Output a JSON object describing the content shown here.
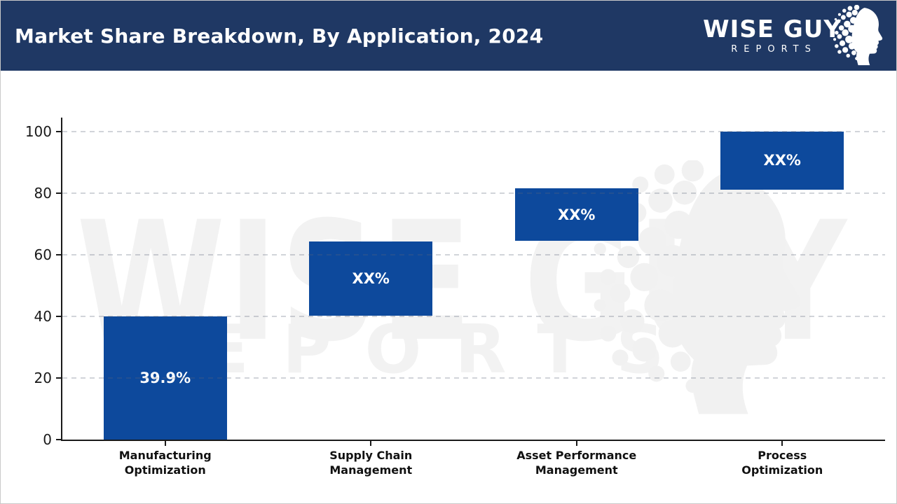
{
  "header": {
    "title": "Market Share Breakdown, By Application, 2024",
    "logo": {
      "line1": "WISE GUY",
      "line2": "REPORTS"
    }
  },
  "watermark": {
    "line1": "WISE GUY",
    "line2": "REPORTS"
  },
  "colors": {
    "header_bg": "#1f3864",
    "bar_fill": "#0d499c",
    "bar_label": "#ffffff",
    "axis": "#1a1a1a",
    "tick_text": "#1a1a1a",
    "category_text": "#111111",
    "grid_rgba": "rgba(90,100,120,0.28)",
    "watermark_text": "#f2f2f2",
    "page_bg": "#ffffff"
  },
  "chart_data": {
    "type": "bar",
    "subtype": "waterfall",
    "title": "Market Share Breakdown, By Application, 2024",
    "categories": [
      "Manufacturing Optimization",
      "Supply Chain Management",
      "Asset Performance Management",
      "Process Optimization"
    ],
    "bars": [
      {
        "category": "Manufacturing Optimization",
        "lines": [
          "Manufacturing",
          "Optimization"
        ],
        "start": 0,
        "end": 39.9,
        "label": "39.9%"
      },
      {
        "category": "Supply Chain Management",
        "lines": [
          "Supply Chain",
          "Management"
        ],
        "start": 40.2,
        "end": 64.3,
        "label": "XX%"
      },
      {
        "category": "Asset Performance Management",
        "lines": [
          "Asset Performance",
          "Management"
        ],
        "start": 64.5,
        "end": 81.6,
        "label": "XX%"
      },
      {
        "category": "Process Optimization",
        "lines": [
          "Process",
          "Optimization"
        ],
        "start": 81.2,
        "end": 100,
        "label": "XX%"
      }
    ],
    "yticks": [
      0,
      20,
      40,
      60,
      80,
      100
    ],
    "ylim": [
      0,
      100
    ],
    "xlabel": "",
    "ylabel": "",
    "grid": "horizontal-dashed",
    "legend": "none"
  }
}
